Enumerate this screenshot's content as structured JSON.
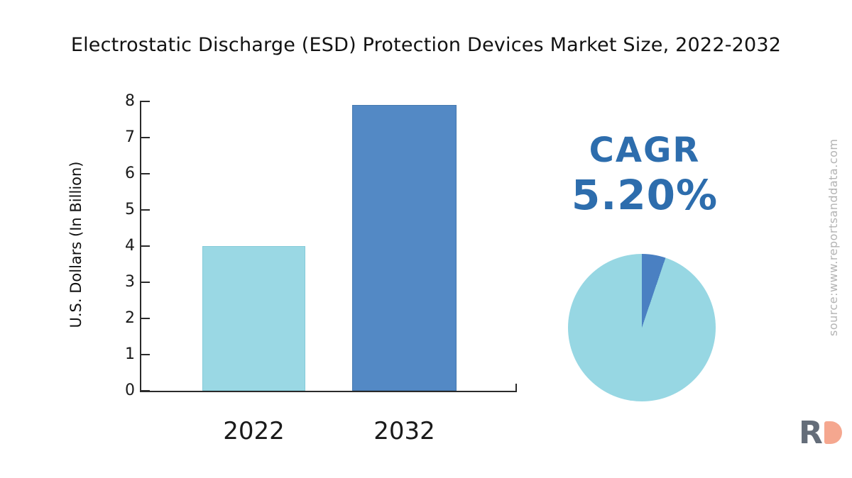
{
  "title": "Electrostatic Discharge (ESD) Protection Devices Market Size, 2022-2032",
  "chart_data": {
    "type": "bar",
    "categories": [
      "2022",
      "2032"
    ],
    "values": [
      4.0,
      7.9
    ],
    "title": "Electrostatic Discharge (ESD) Protection Devices Market Size, 2022-2032",
    "xlabel": "",
    "ylabel": "U.S. Dollars (In Billion)",
    "ylim": [
      0,
      8
    ],
    "yticks": [
      "0",
      "1",
      "2",
      "3",
      "4",
      "5",
      "6",
      "7",
      "8"
    ],
    "grid": false,
    "legend": "none",
    "bar_colors": [
      "#9ad8e4",
      "#5389c5"
    ],
    "bar_border_colors": [
      "#86cbd9",
      "#4679ae"
    ]
  },
  "cagr": {
    "label": "CAGR",
    "value": "5.20%",
    "percent": 5.2,
    "color": "#2d6dad"
  },
  "pie": {
    "type": "pie",
    "slice_percent": 5.2,
    "remainder_percent": 94.8,
    "slice_color": "#4a80c2",
    "base_color": "#97d7e3"
  },
  "source": {
    "text": "source:www.reportsanddata.com"
  },
  "logo": {
    "letter": "R",
    "r_color": "#646d79",
    "d_color": "#f5a78f"
  }
}
